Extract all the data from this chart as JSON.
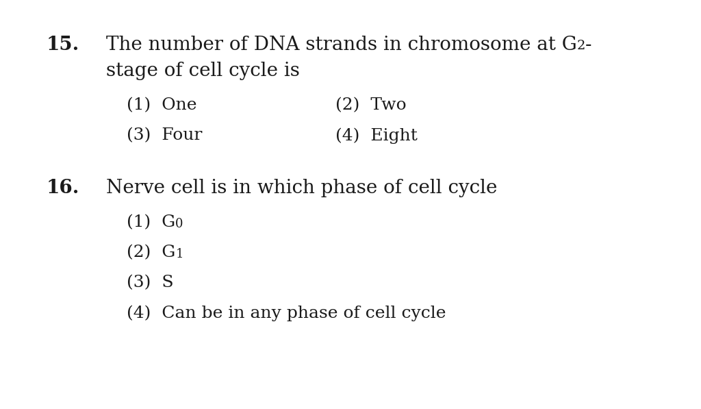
{
  "background_color": "#ffffff",
  "text_color": "#1a1a1a",
  "font_family": "DejaVu Serif",
  "font_size_number": 20,
  "font_size_question": 20,
  "font_size_option": 18,
  "q15_number": "15.",
  "q15_line1": "The number of DNA strands in chromosome at G",
  "q15_g2": "2",
  "q15_dash": "-",
  "q15_line2": "stage of cell cycle is",
  "q15_opt1": "(1)  One",
  "q15_opt2": "(2)  Two",
  "q15_opt3": "(3)  Four",
  "q15_opt4": "(4)  Eight",
  "q16_number": "16.",
  "q16_text": "Nerve cell is in which phase of cell cycle",
  "q16_opt1_pre": "(1)  G",
  "q16_opt1_sub": "0",
  "q16_opt2_pre": "(2)  G",
  "q16_opt2_sub": "1",
  "q16_opt3": "(3)  S",
  "q16_opt4": "(4)  Can be in any phase of cell cycle"
}
